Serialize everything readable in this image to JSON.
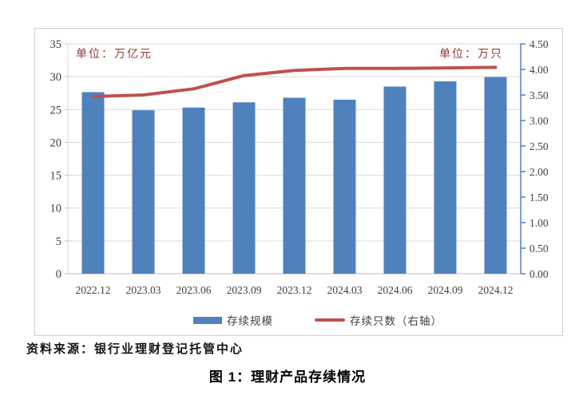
{
  "page": {
    "source_note": "资料来源：银行业理财登记托管中心",
    "caption": "图 1：理财产品存续情况"
  },
  "chart_data": {
    "type": "bar",
    "title": "",
    "categories": [
      "2022.12",
      "2023.03",
      "2023.06",
      "2023.09",
      "2023.12",
      "2024.03",
      "2024.06",
      "2024.09",
      "2024.12"
    ],
    "series": [
      {
        "name": "存续规模",
        "type": "bar",
        "axis": "left",
        "color": "#4f81bd",
        "values": [
          27.65,
          24.9,
          25.3,
          26.1,
          26.8,
          26.5,
          28.5,
          29.3,
          29.95
        ]
      },
      {
        "name": "存续只数（右轴）",
        "type": "line",
        "axis": "right",
        "color": "#c0504d",
        "values": [
          3.47,
          3.5,
          3.62,
          3.88,
          3.98,
          4.02,
          4.02,
          4.03,
          4.04
        ]
      }
    ],
    "left_axis": {
      "unit_label": "单位：万亿元",
      "min": 0,
      "max": 35,
      "step": 5,
      "tick_labels": [
        "0",
        "5",
        "10",
        "15",
        "20",
        "25",
        "30",
        "35"
      ]
    },
    "right_axis": {
      "unit_label": "单位：万只",
      "min": 0,
      "max": 4.5,
      "step": 0.5,
      "tick_labels": [
        "0.00",
        "0.50",
        "1.00",
        "1.50",
        "2.00",
        "2.50",
        "3.00",
        "3.50",
        "4.00",
        "4.50"
      ]
    },
    "grid": true,
    "legend_position": "bottom",
    "colors": {
      "bar": "#4f81bd",
      "line": "#c0504d",
      "unit_text": "#953735",
      "axis_text": "#404040",
      "gridline": "#d9d9d9",
      "right_axis_line": "#4f81bd",
      "frame_border": "#cfcfcf"
    }
  }
}
